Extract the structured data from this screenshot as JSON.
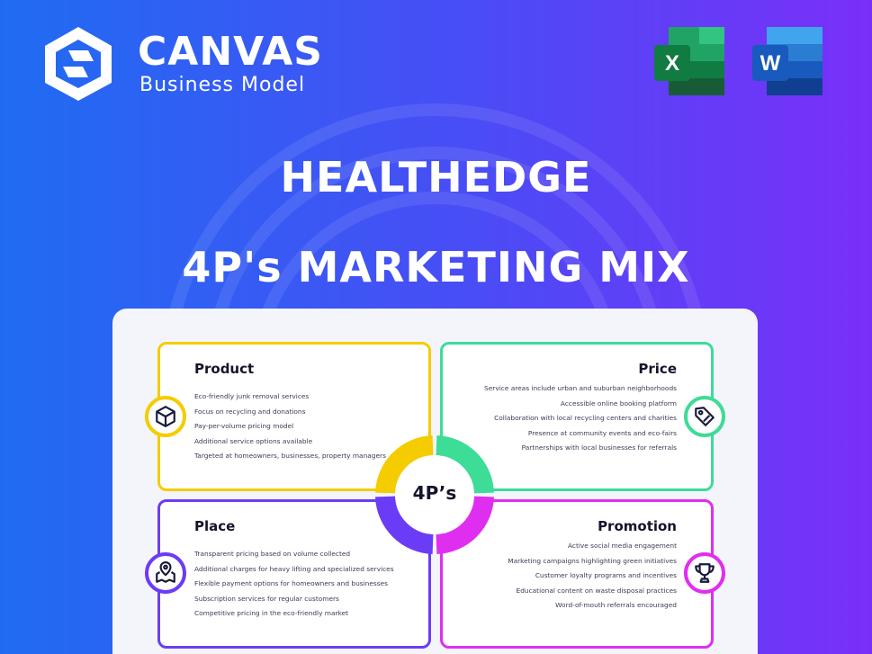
{
  "brand": {
    "name": "CANVAS",
    "tagline": "Business Model"
  },
  "apps": [
    {
      "name": "excel-icon",
      "letter": "X"
    },
    {
      "name": "word-icon",
      "letter": "W"
    }
  ],
  "title": "HEALTHEDGE",
  "subtitle": "4P's MARKETING MIX",
  "center_label": "4P’s",
  "colors": {
    "product": "#f5cc00",
    "price": "#3ddc97",
    "place": "#6b3cf5",
    "promotion": "#e02ef0"
  },
  "quadrants": {
    "product": {
      "title": "Product",
      "icon": "box-icon",
      "items": [
        "Eco-friendly junk removal services",
        "Focus on recycling and donations",
        "Pay-per-volume pricing model",
        "Additional service options available",
        "Targeted at homeowners, businesses, property managers"
      ]
    },
    "price": {
      "title": "Price",
      "icon": "price-tag-icon",
      "items": [
        "Service areas include urban and suburban neighborhoods",
        "Accessible online booking platform",
        "Collaboration with local recycling centers and charities",
        "Presence at community events and eco-fairs",
        "Partnerships with local businesses for referrals"
      ]
    },
    "place": {
      "title": "Place",
      "icon": "map-pin-icon",
      "items": [
        "Transparent pricing based on volume collected",
        "Additional charges for heavy lifting and specialized services",
        "Flexible payment options for homeowners and businesses",
        "Subscription services for regular customers",
        "Competitive pricing in the eco-friendly market"
      ]
    },
    "promotion": {
      "title": "Promotion",
      "icon": "trophy-icon",
      "items": [
        "Active social media engagement",
        "Marketing campaigns highlighting green initiatives",
        "Customer loyalty programs and incentives",
        "Educational content on waste disposal practices",
        "Word-of-mouth referrals encouraged"
      ]
    }
  }
}
